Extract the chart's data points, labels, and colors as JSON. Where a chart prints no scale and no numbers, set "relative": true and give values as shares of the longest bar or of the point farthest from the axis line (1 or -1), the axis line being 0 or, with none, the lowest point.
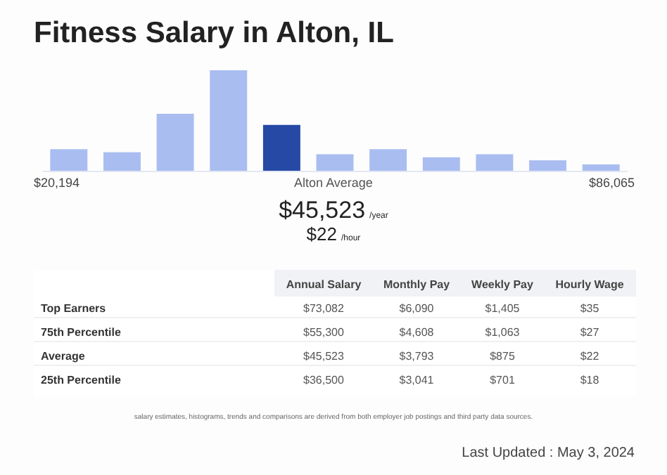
{
  "chart_data": {
    "type": "bar",
    "title": "Fitness Salary in Alton, IL",
    "relative": true,
    "categories": [
      null,
      null,
      null,
      null,
      null,
      null,
      null,
      null,
      null,
      null,
      null
    ],
    "values": [
      0.22,
      0.19,
      0.57,
      1,
      0.46,
      0.17,
      0.22,
      0.14,
      0.17,
      0.11,
      0.07
    ],
    "colors": [
      "#a9bdf0",
      "#a9bdf0",
      "#a9bdf0",
      "#a9bdf0",
      "#2549a5",
      "#a9bdf0",
      "#a9bdf0",
      "#a9bdf0",
      "#a9bdf0",
      "#a9bdf0",
      "#a9bdf0"
    ],
    "annotations": [
      "$20,194",
      "Alton Average",
      "$86,065",
      "$45,523",
      "/year",
      "$22",
      "/hour",
      "Annual Salary",
      "Monthly Pay",
      "Weekly Pay",
      "Hourly Wage",
      "Top Earners",
      "$73,082",
      "$6,090",
      "$1,405",
      "$35",
      "75th Percentile",
      "$55,300",
      "$4,608",
      "$1,063",
      "$27",
      "Average",
      "$45,523",
      "$3,793",
      "$875",
      "$22",
      "25th Percentile",
      "$36,500",
      "$3,041",
      "$701",
      "$18",
      "salary estimates, histograms, trends and comparisons are derived from both employer job postings and third party data sources.",
      "Last Updated : May 3, 2024"
    ]
  }
}
